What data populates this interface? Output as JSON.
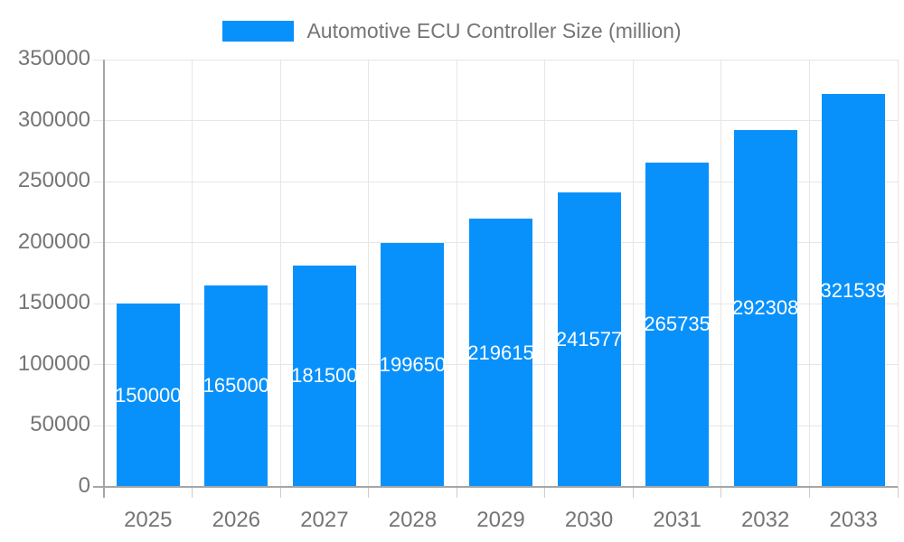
{
  "legend": {
    "label": "Automotive ECU Controller Size (million)"
  },
  "colors": {
    "bar": "#0991fb",
    "bar_label": "#ffffff",
    "axis_line": "#a6a6a6",
    "grid_line": "#e6e6e6",
    "tick_line": "#cccccc",
    "text": "#757575",
    "background": "#ffffff"
  },
  "chart_data": {
    "type": "bar",
    "title": "Automotive ECU Controller Size (million)",
    "categories": [
      "2025",
      "2026",
      "2027",
      "2028",
      "2029",
      "2030",
      "2031",
      "2032",
      "2033"
    ],
    "values": [
      150000,
      165000,
      181500,
      199650,
      219615,
      241577,
      265735,
      292308,
      321539
    ],
    "bar_labels": [
      "150000",
      "165000",
      "181500",
      "199650",
      "219615",
      "241577",
      "265735",
      "292308",
      "321539"
    ],
    "xlabel": "",
    "ylabel": "",
    "ylim": [
      0,
      350000
    ],
    "y_ticks": [
      0,
      50000,
      100000,
      150000,
      200000,
      250000,
      300000,
      350000
    ],
    "y_tick_labels": [
      "0",
      "50000",
      "100000",
      "150000",
      "200000",
      "250000",
      "300000",
      "350000"
    ],
    "grid": true,
    "legend_position": "top-center",
    "bar_labels_visible": true,
    "bar_label_position": "center-inside"
  }
}
